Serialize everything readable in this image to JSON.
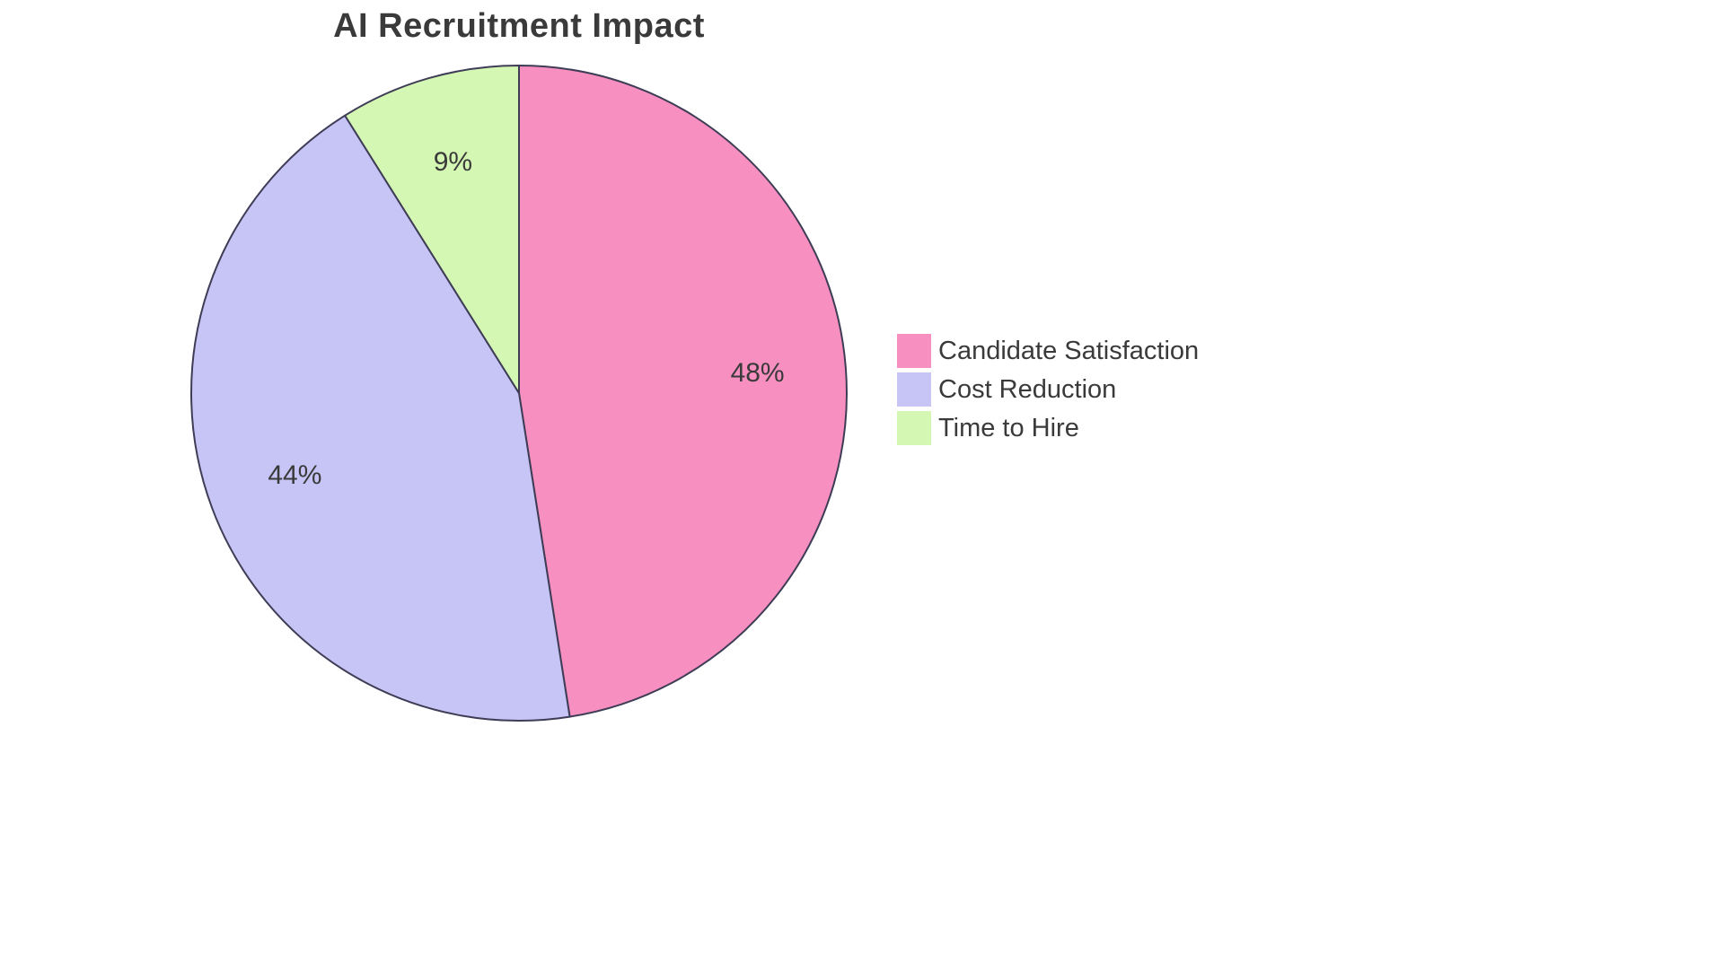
{
  "chart_data": {
    "type": "pie",
    "title": "AI Recruitment Impact",
    "slices": [
      {
        "label": "Candidate Satisfaction",
        "value": 48,
        "display": "48%",
        "color": "#F78FC1"
      },
      {
        "label": "Cost Reduction",
        "value": 44,
        "display": "44%",
        "color": "#C7C5F6"
      },
      {
        "label": "Time to Hire",
        "value": 9,
        "display": "9%",
        "color": "#D4F8B4"
      }
    ],
    "start_angle_deg": 0,
    "direction": "clockwise",
    "legend_position": "right",
    "stroke_color": "#3F3D56",
    "stroke_width": 2,
    "title_color": "#3A3A3A",
    "label_color": "#3A3A3A"
  }
}
